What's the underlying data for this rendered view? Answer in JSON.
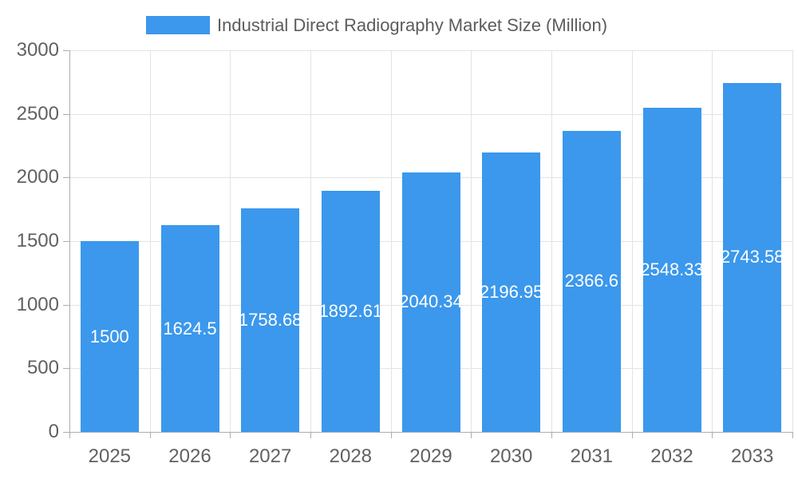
{
  "chart_data": {
    "type": "bar",
    "title": "Industrial Direct Radiography Market Size (Million)",
    "categories": [
      "2025",
      "2026",
      "2027",
      "2028",
      "2029",
      "2030",
      "2031",
      "2032",
      "2033"
    ],
    "values": [
      1500,
      1624.5,
      1758.68,
      1892.61,
      2040.34,
      2196.95,
      2366.6,
      2548.33,
      2743.58
    ],
    "bar_labels": [
      "1500",
      "1624.5",
      "1758.68",
      "1892.61",
      "2040.34",
      "2196.95",
      "2366.6",
      "2548.33",
      "2743.58"
    ],
    "xlabel": "",
    "ylabel": "",
    "ylim": [
      0,
      3000
    ],
    "yticks": [
      0,
      500,
      1000,
      1500,
      2000,
      2500,
      3000
    ],
    "grid": "on",
    "legend_position": "top",
    "colors": {
      "bar": "#3B98EC",
      "bar_value_label": "#FFFFFF",
      "axis_text": "#616161",
      "legend_text": "#5C5C5C",
      "gridline": "#E3E3E3",
      "axis_line": "#ADADAD",
      "background": "#FFFFFF"
    }
  }
}
